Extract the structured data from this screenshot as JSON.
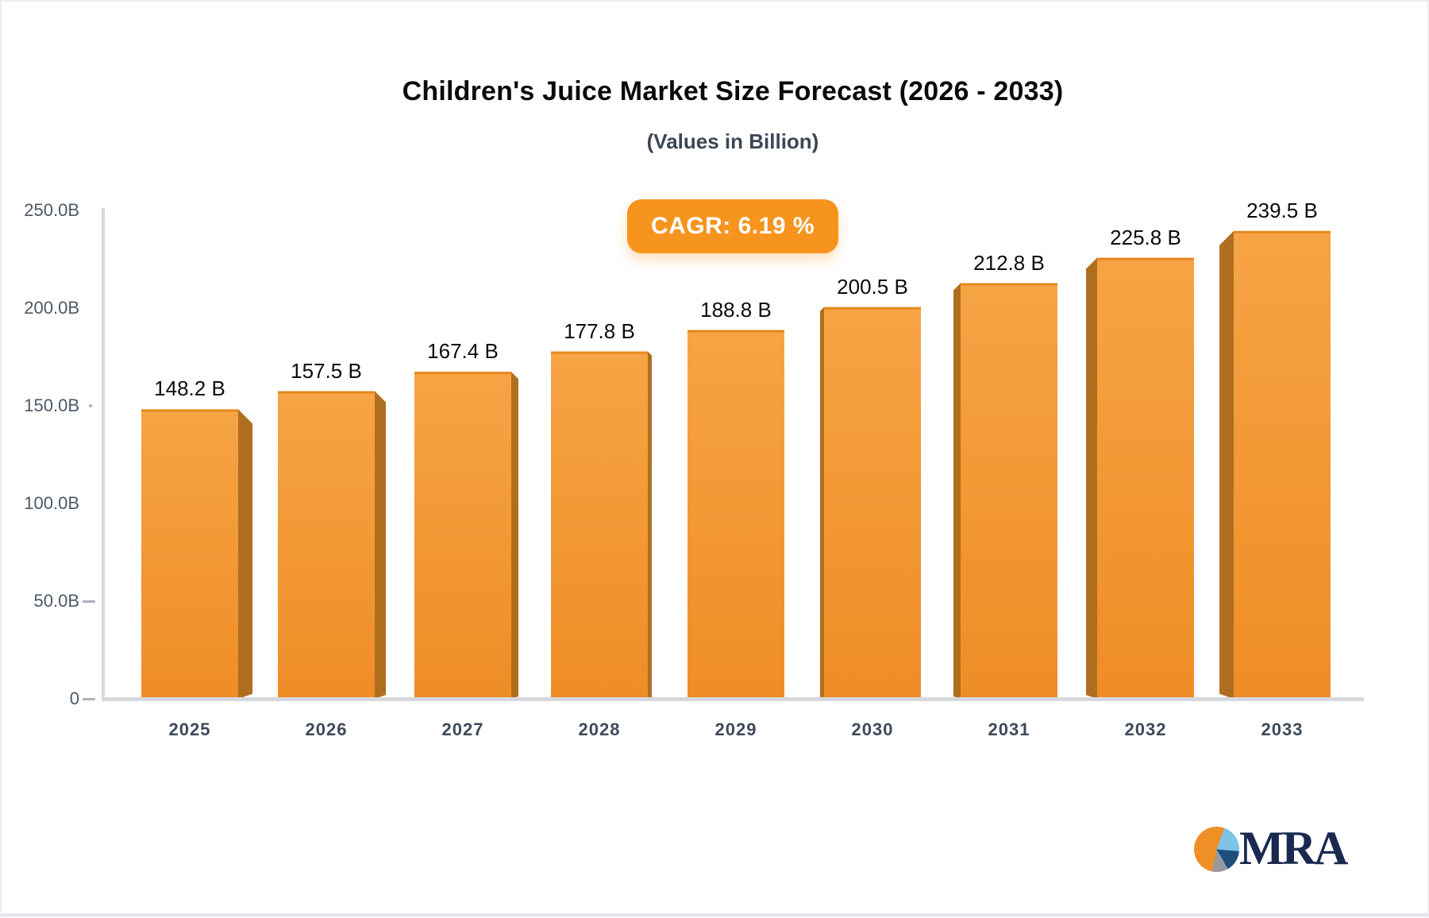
{
  "page": {
    "background": "#f7f8fa",
    "card_background": "#ffffff"
  },
  "header": {
    "title": "Children's Juice Market Size Forecast (2026 - 2033)",
    "subtitle": "(Values in Billion)"
  },
  "cagr_badge": {
    "label": "CAGR: 6.19 %",
    "background": "#f7941e",
    "text_color": "#ffffff"
  },
  "chart_data": {
    "type": "bar",
    "title": "Children's Juice Market Size Forecast (2026 - 2033)",
    "subtitle": "(Values in Billion)",
    "categories": [
      "2025",
      "2026",
      "2027",
      "2028",
      "2029",
      "2030",
      "2031",
      "2032",
      "2033"
    ],
    "values": [
      148.2,
      157.5,
      167.4,
      177.8,
      188.8,
      200.5,
      212.8,
      225.8,
      239.5
    ],
    "value_labels": [
      "148.2 B",
      "157.5 B",
      "167.4 B",
      "177.8 B",
      "188.8 B",
      "200.5 B",
      "212.8 B",
      "225.8 B",
      "239.5 B"
    ],
    "unit": "Billion",
    "xlabel": "",
    "ylabel": "",
    "ylim": [
      0,
      250
    ],
    "yticks": [
      {
        "label": "0",
        "value": 0
      },
      {
        "label": "50.0B",
        "value": 50
      },
      {
        "label": "100.0B",
        "value": 100
      },
      {
        "label": "150.0B",
        "value": 150
      },
      {
        "label": "200.0B",
        "value": 200
      },
      {
        "label": "250.0B",
        "value": 250
      }
    ],
    "grid": false,
    "legend": "none",
    "bar_style": "3d-perspective-center",
    "colors": {
      "bar_face_top": "#f6a445",
      "bar_face_bottom": "#ef8d26",
      "bar_top_edge": "#e5891e",
      "bar_side": "#b06f1e",
      "axis": "#d6d8dd",
      "tick_label": "#4d5866",
      "category_label": "#3e4a5a",
      "value_label": "#0c0c0e"
    }
  },
  "branding": {
    "logo_text": "MRA",
    "logo_text_color": "#1a2950",
    "pie_colors": {
      "orange": "#ef8f26",
      "light_blue": "#7ec3e6",
      "navy": "#1e4e7c",
      "gray": "#97999e"
    }
  }
}
